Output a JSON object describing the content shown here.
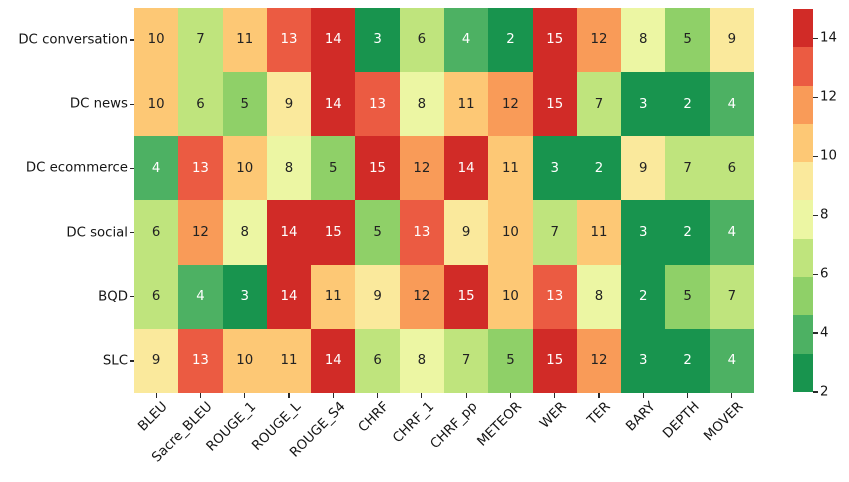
{
  "figure": {
    "background": "#ffffff",
    "tick_color": "#2a2a2a",
    "label_color": "#151515"
  },
  "chart_data": {
    "type": "heatmap",
    "title": "",
    "rows": [
      "DC conversation",
      "DC news",
      "DC ecommerce",
      "DC social",
      "BQD",
      "SLC"
    ],
    "columns": [
      "BLEU",
      "Sacre_BLEU",
      "ROUGE_1",
      "ROUGE_L",
      "ROUGE_S4",
      "CHRF",
      "CHRF_1",
      "CHRF_pp",
      "METEOR",
      "WER",
      "TER",
      "BARY",
      "DEPTH",
      "MOVER"
    ],
    "values": [
      [
        10,
        7,
        11,
        13,
        14,
        3,
        6,
        4,
        2,
        15,
        12,
        8,
        5,
        9
      ],
      [
        10,
        6,
        5,
        9,
        14,
        13,
        8,
        11,
        12,
        15,
        7,
        3,
        2,
        4
      ],
      [
        4,
        13,
        10,
        8,
        5,
        15,
        12,
        14,
        11,
        3,
        2,
        9,
        7,
        6
      ],
      [
        6,
        12,
        8,
        14,
        15,
        5,
        13,
        9,
        10,
        7,
        11,
        3,
        2,
        4
      ],
      [
        6,
        4,
        3,
        14,
        11,
        9,
        12,
        15,
        10,
        13,
        8,
        2,
        5,
        7
      ],
      [
        9,
        13,
        10,
        11,
        14,
        6,
        8,
        7,
        5,
        15,
        12,
        3,
        2,
        4
      ]
    ],
    "vmin": 2,
    "vmax": 15,
    "colormap": "RdYlGn_r",
    "grid": false,
    "legend_position": "right-colorbar",
    "colorbar_ticks": [
      14,
      12,
      10,
      8,
      6,
      4,
      2
    ],
    "colorbar_band_colors": [
      "#d12b27",
      "#eb5b42",
      "#f99b58",
      "#fdc875",
      "#fae99c",
      "#ecf6a3",
      "#bfe47d",
      "#8fd068",
      "#4db163",
      "#18944e"
    ],
    "value_colors": {
      "2": "#18944e",
      "3": "#18944e",
      "4": "#4db163",
      "5": "#8fd068",
      "6": "#bfe47d",
      "7": "#bfe47d",
      "8": "#ecf6a3",
      "9": "#fae99c",
      "10": "#fdc875",
      "11": "#fdc875",
      "12": "#f99b58",
      "13": "#eb5b42",
      "14": "#d12b27",
      "15": "#d12b27"
    },
    "light_text_values": [
      2,
      3,
      4,
      13,
      14,
      15
    ],
    "annotation_light_color": "#ffffff",
    "annotation_dark_color": "#222222"
  }
}
